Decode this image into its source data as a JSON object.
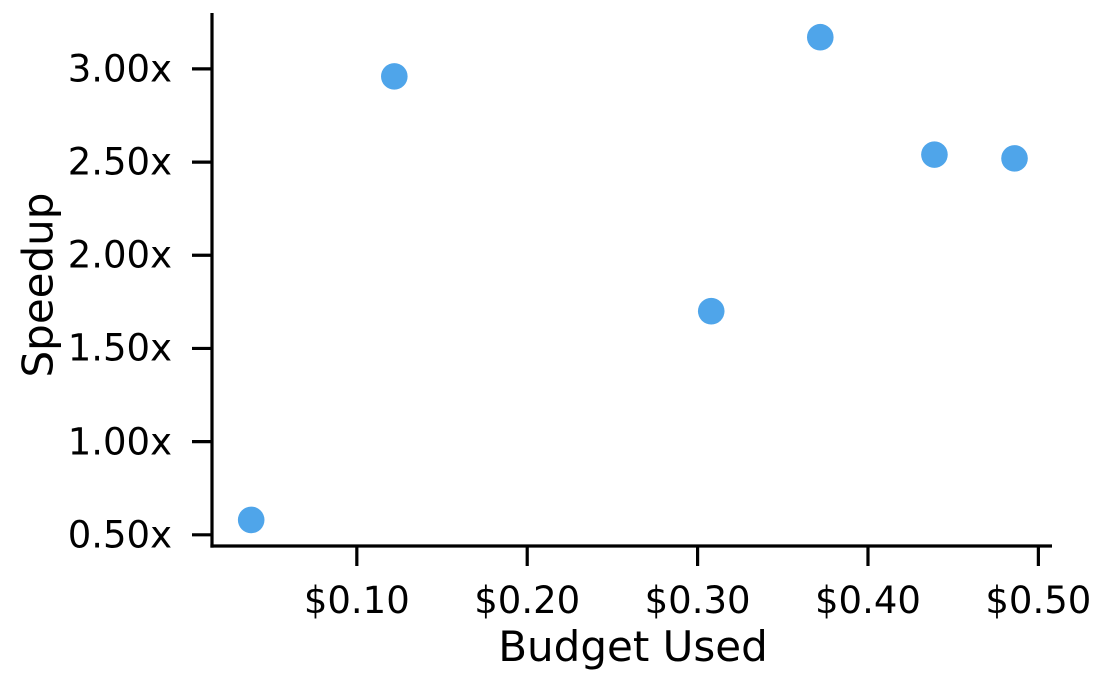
{
  "chart_data": {
    "type": "scatter",
    "title": "",
    "xlabel": "Budget Used",
    "ylabel": "Speedup",
    "x_ticks": [
      {
        "value": 0.1,
        "label": "$0.10"
      },
      {
        "value": 0.2,
        "label": "$0.20"
      },
      {
        "value": 0.3,
        "label": "$0.30"
      },
      {
        "value": 0.4,
        "label": "$0.40"
      },
      {
        "value": 0.5,
        "label": "$0.50"
      }
    ],
    "y_ticks": [
      {
        "value": 0.5,
        "label": "0.50x"
      },
      {
        "value": 1.0,
        "label": "1.00x"
      },
      {
        "value": 1.5,
        "label": "1.50x"
      },
      {
        "value": 2.0,
        "label": "2.00x"
      },
      {
        "value": 2.5,
        "label": "2.50x"
      },
      {
        "value": 3.0,
        "label": "3.00x"
      }
    ],
    "xlim": [
      0.015,
      0.508
    ],
    "ylim": [
      0.44,
      3.3
    ],
    "grid": false,
    "legend": false,
    "points": [
      {
        "x": 0.038,
        "y": 0.58
      },
      {
        "x": 0.122,
        "y": 2.96
      },
      {
        "x": 0.308,
        "y": 1.7
      },
      {
        "x": 0.372,
        "y": 3.17
      },
      {
        "x": 0.439,
        "y": 2.54
      },
      {
        "x": 0.486,
        "y": 2.52
      }
    ],
    "colors": {
      "marker": "#4fa5ea",
      "axis": "#000000",
      "background": "#ffffff"
    }
  }
}
